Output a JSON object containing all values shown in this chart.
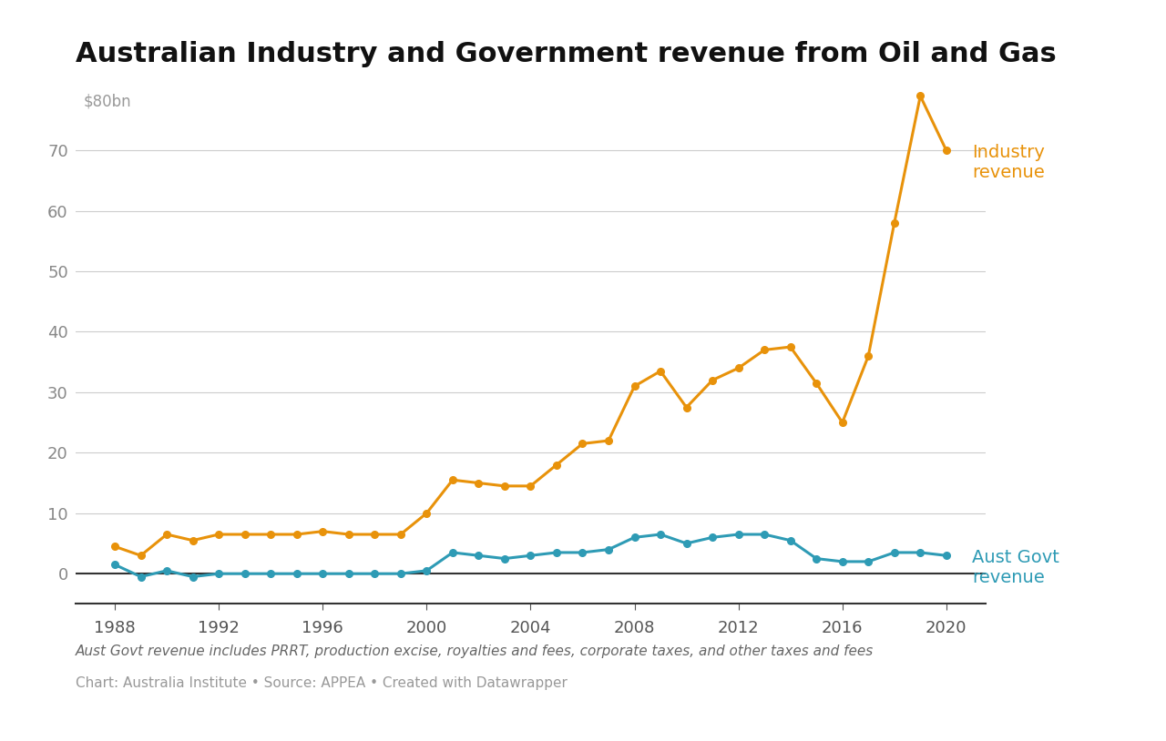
{
  "title": "Australian Industry and Government revenue from Oil and Gas",
  "ylabel_top": "$80bn",
  "footnote1": "Aust Govt revenue includes PRRT, production excise, royalties and fees, corporate taxes, and other taxes and fees",
  "footnote2": "Chart: Australia Institute • Source: APPEA • Created with Datawrapper",
  "industry_label": "Industry\nrevenue",
  "govt_label": "Aust Govt\nrevenue",
  "industry_color": "#E8920A",
  "govt_color": "#2E9BB5",
  "background_color": "#ffffff",
  "years": [
    1988,
    1989,
    1990,
    1991,
    1992,
    1993,
    1994,
    1995,
    1996,
    1997,
    1998,
    1999,
    2000,
    2001,
    2002,
    2003,
    2004,
    2005,
    2006,
    2007,
    2008,
    2009,
    2010,
    2011,
    2012,
    2013,
    2014,
    2015,
    2016,
    2017,
    2018,
    2019,
    2020
  ],
  "industry_revenue": [
    4.5,
    3.0,
    6.5,
    5.5,
    6.5,
    6.5,
    6.5,
    6.5,
    7.0,
    6.5,
    6.5,
    6.5,
    10.0,
    15.5,
    15.0,
    14.5,
    14.5,
    18.0,
    21.5,
    22.0,
    31.0,
    33.5,
    27.5,
    32.0,
    34.0,
    37.0,
    37.5,
    31.5,
    25.0,
    36.0,
    58.0,
    79.0,
    70.0
  ],
  "govt_revenue": [
    1.5,
    -0.5,
    0.5,
    -0.5,
    0.0,
    0.0,
    0.0,
    0.0,
    0.0,
    0.0,
    0.0,
    0.0,
    0.5,
    3.5,
    3.0,
    2.5,
    3.0,
    3.5,
    3.5,
    4.0,
    6.0,
    6.5,
    5.0,
    6.0,
    6.5,
    6.5,
    5.5,
    2.5,
    2.0,
    2.0,
    3.5,
    3.5,
    3.0
  ],
  "ylim": [
    -5,
    82
  ],
  "yticks": [
    0,
    10,
    20,
    30,
    40,
    50,
    60,
    70
  ],
  "xlim": [
    1986.5,
    2021.5
  ],
  "xticks": [
    1988,
    1992,
    1996,
    2000,
    2004,
    2008,
    2012,
    2016,
    2020
  ],
  "title_fontsize": 22,
  "tick_fontsize": 13,
  "label_fontsize": 14,
  "footnote1_fontsize": 11,
  "footnote2_fontsize": 11
}
